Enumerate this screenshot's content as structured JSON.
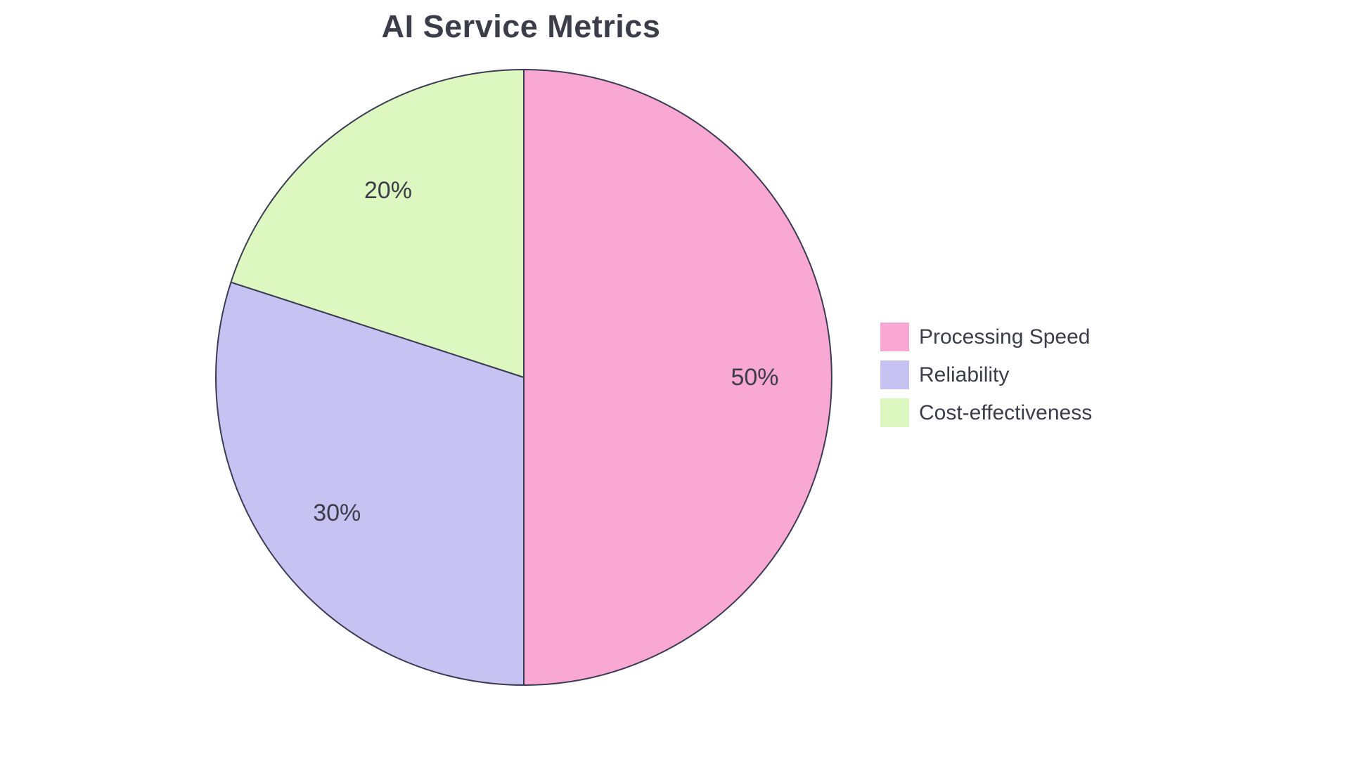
{
  "chart_data": {
    "type": "pie",
    "title": "AI Service Metrics",
    "legend_position": "right",
    "direction": "clockwise",
    "start_angle_deg": 0,
    "stroke_color": "#3b3b54",
    "text_color": "#3d3d4a",
    "background_color": "#ffffff",
    "segments": [
      {
        "label": "Processing Speed",
        "value": 50,
        "display": "50%",
        "color": "#f9a8d4"
      },
      {
        "label": "Reliability",
        "value": 30,
        "display": "30%",
        "color": "#c6c3f2"
      },
      {
        "label": "Cost-effectiveness",
        "value": 20,
        "display": "20%",
        "color": "#dcf8c0"
      }
    ]
  }
}
